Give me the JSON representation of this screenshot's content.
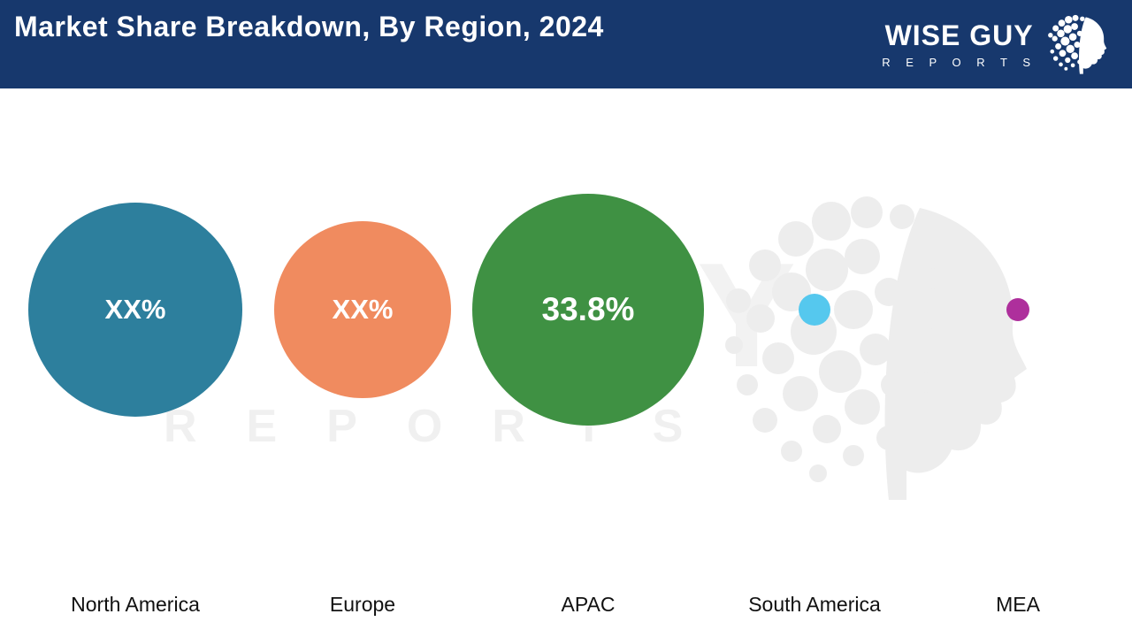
{
  "header": {
    "title": "Market Share Breakdown, By Region, 2024",
    "bg_color": "#17386d",
    "logo": {
      "line1": "WISE GUY",
      "line2": "R E P O R T S"
    }
  },
  "watermark": {
    "letter": "Y",
    "reports_text": "REPORTS"
  },
  "chart_data": {
    "type": "bubble",
    "title": "Market Share Breakdown, By Region, 2024",
    "categories": [
      "North America",
      "Europe",
      "APAC",
      "South America",
      "MEA"
    ],
    "values": [
      null,
      null,
      33.8,
      null,
      null
    ],
    "value_labels": [
      "XX%",
      "XX%",
      "33.8%",
      "",
      ""
    ],
    "legend_position": "bottom",
    "regions": [
      {
        "name": "North America",
        "label": "XX%",
        "value": null,
        "color": "#2d7f9d",
        "diameter": 242
      },
      {
        "name": "Europe",
        "label": "XX%",
        "value": null,
        "color": "#f08b5f",
        "diameter": 200
      },
      {
        "name": "APAC",
        "label": "33.8%",
        "value": 33.8,
        "color": "#3f9143",
        "diameter": 262
      },
      {
        "name": "South America",
        "label": "",
        "value": null,
        "color": "#55c8ee",
        "diameter": 36
      },
      {
        "name": "MEA",
        "label": "",
        "value": null,
        "color": "#ae2f9c",
        "diameter": 26
      }
    ]
  }
}
